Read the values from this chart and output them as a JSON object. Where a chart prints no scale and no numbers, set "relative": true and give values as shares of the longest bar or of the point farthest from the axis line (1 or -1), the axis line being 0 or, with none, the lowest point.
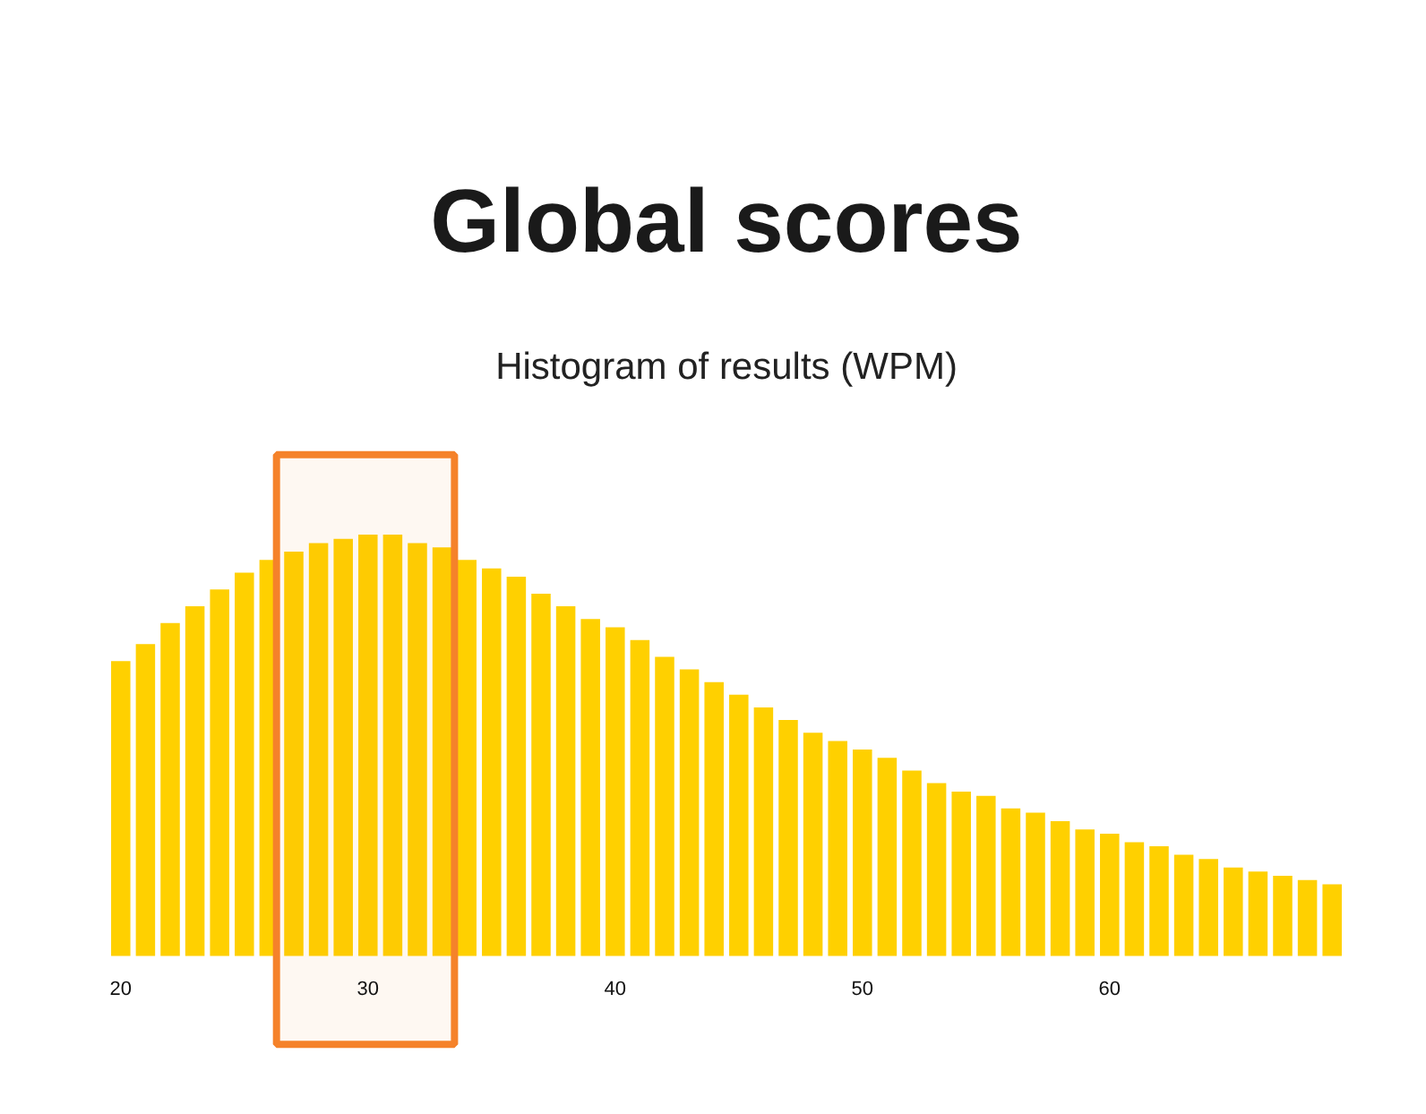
{
  "chart_data": {
    "type": "bar",
    "title": "Global scores",
    "subtitle": "Histogram of results (WPM)",
    "relative": true,
    "x": [
      20,
      21,
      22,
      23,
      24,
      25,
      26,
      27,
      28,
      29,
      30,
      31,
      32,
      33,
      34,
      35,
      36,
      37,
      38,
      39,
      40,
      41,
      42,
      43,
      44,
      45,
      46,
      47,
      48,
      49,
      50,
      51,
      52,
      53,
      54,
      55,
      56,
      57,
      58,
      59,
      60,
      61,
      62,
      63,
      64,
      65,
      66,
      67,
      68,
      69
    ],
    "values": [
      0.7,
      0.74,
      0.79,
      0.83,
      0.87,
      0.91,
      0.94,
      0.96,
      0.98,
      0.99,
      1,
      1,
      0.98,
      0.97,
      0.94,
      0.92,
      0.9,
      0.86,
      0.83,
      0.8,
      0.78,
      0.75,
      0.71,
      0.68,
      0.65,
      0.62,
      0.59,
      0.56,
      0.53,
      0.51,
      0.49,
      0.47,
      0.44,
      0.41,
      0.39,
      0.38,
      0.35,
      0.34,
      0.32,
      0.3,
      0.29,
      0.27,
      0.26,
      0.24,
      0.23,
      0.21,
      0.2,
      0.19,
      0.18,
      0.17
    ],
    "color": "#ffd000",
    "xlim": [
      19.5,
      69.5
    ],
    "xticks": [
      20,
      30,
      40,
      50,
      60
    ],
    "bands": [
      {
        "axis": "x",
        "from": 26.3,
        "to": 33.5,
        "color": "#f5822a"
      }
    ]
  }
}
